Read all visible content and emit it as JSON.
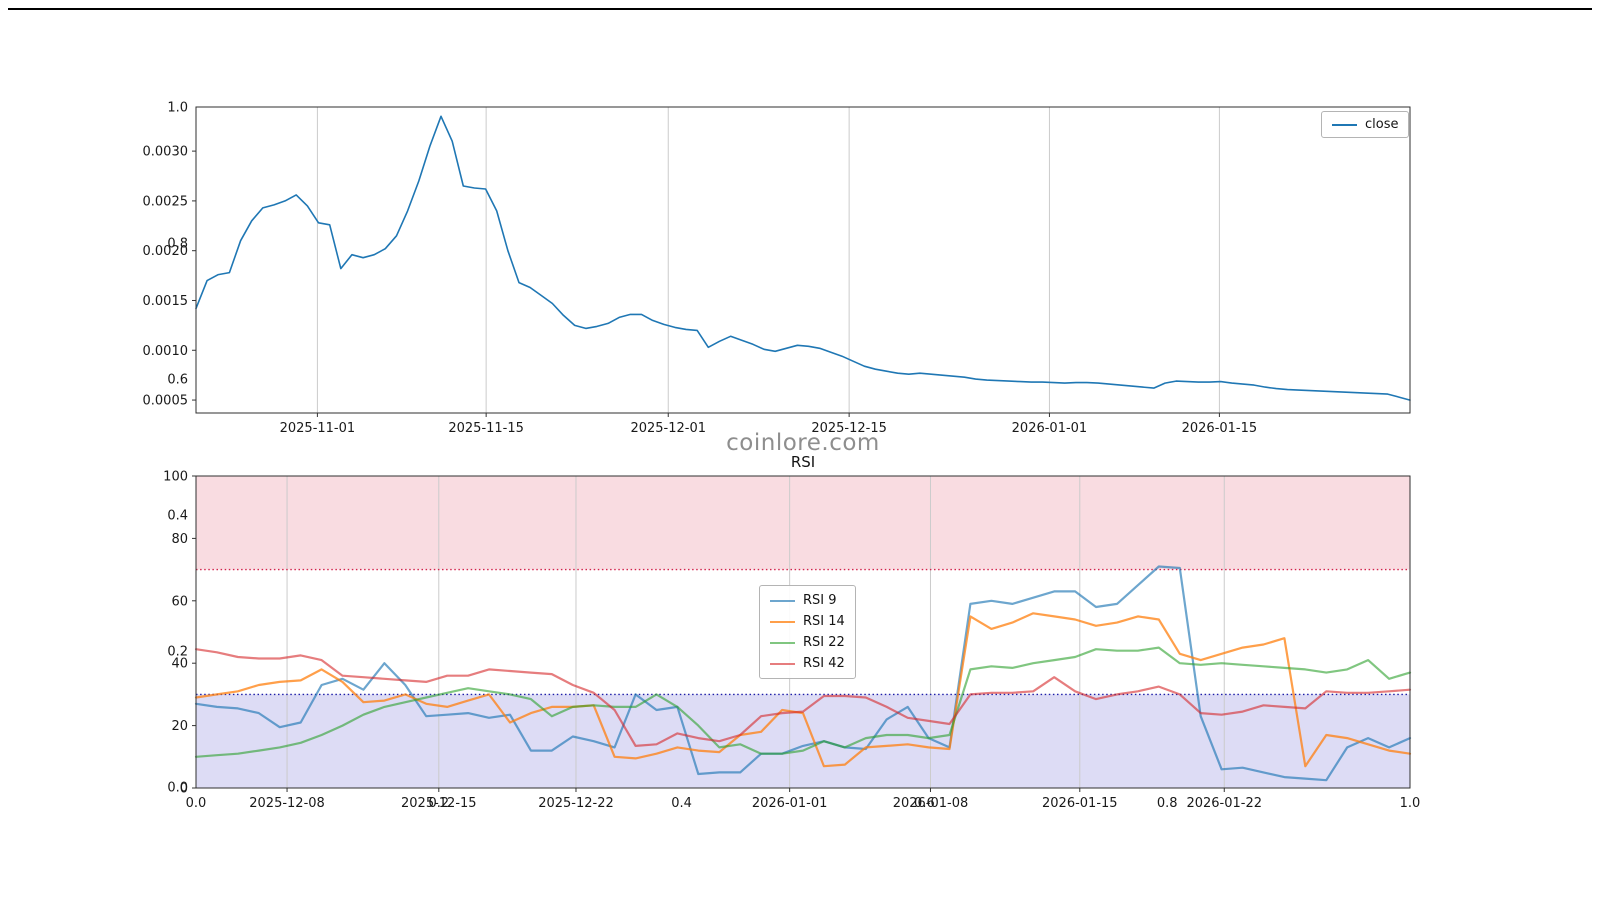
{
  "watermark": "coinlore.com",
  "overlay_axis": {
    "y_labels": [
      "1.0",
      "0.8",
      "0.6",
      "0.4",
      "0.2",
      "0.0"
    ],
    "x_labels": [
      "0.0",
      "0.2",
      "0.4",
      "0.6",
      "0.8",
      "1.0"
    ]
  },
  "chart_data": [
    {
      "type": "line",
      "title": "",
      "grid": "vertical",
      "legend_position": "upper right",
      "y_format": "price",
      "ylim": [
        0.00037,
        0.003443
      ],
      "y_ticks": [
        0.0005,
        0.001,
        0.0015,
        0.002,
        0.0025,
        0.003
      ],
      "x_ticks": [
        {
          "label": "2025-11-01",
          "pos": 0.1
        },
        {
          "label": "2025-11-15",
          "pos": 0.239
        },
        {
          "label": "2025-12-01",
          "pos": 0.389
        },
        {
          "label": "2025-12-15",
          "pos": 0.538
        },
        {
          "label": "2026-01-01",
          "pos": 0.703
        },
        {
          "label": "2026-01-15",
          "pos": 0.843
        }
      ],
      "series": [
        {
          "name": "close",
          "color": "#1f77b4",
          "opacity": 1,
          "width": 1.6,
          "values": [
            0.00142,
            0.0017,
            0.00176,
            0.00178,
            0.0021,
            0.0023,
            0.00243,
            0.00246,
            0.0025,
            0.00256,
            0.00245,
            0.00228,
            0.00226,
            0.00182,
            0.00196,
            0.00193,
            0.00196,
            0.00202,
            0.00215,
            0.0024,
            0.0027,
            0.00305,
            0.00335,
            0.0031,
            0.00265,
            0.00263,
            0.00262,
            0.0024,
            0.002,
            0.00168,
            0.00163,
            0.00155,
            0.00147,
            0.00135,
            0.00125,
            0.00122,
            0.00124,
            0.00127,
            0.00133,
            0.00136,
            0.00136,
            0.0013,
            0.00126,
            0.00123,
            0.00121,
            0.0012,
            0.00103,
            0.00109,
            0.00114,
            0.0011,
            0.00106,
            0.00101,
            0.00099,
            0.00102,
            0.00105,
            0.00104,
            0.00102,
            0.00098,
            0.00094,
            0.00089,
            0.00084,
            0.00081,
            0.00079,
            0.00077,
            0.00076,
            0.00077,
            0.00076,
            0.00075,
            0.00074,
            0.00073,
            0.00071,
            0.0007,
            0.000695,
            0.00069,
            0.000685,
            0.00068,
            0.00068,
            0.000675,
            0.00067,
            0.000675,
            0.000675,
            0.00067,
            0.00066,
            0.00065,
            0.00064,
            0.00063,
            0.00062,
            0.00067,
            0.00069,
            0.000685,
            0.00068,
            0.00068,
            0.000685,
            0.00067,
            0.00066,
            0.00065,
            0.00063,
            0.000615,
            0.000605,
            0.0006,
            0.000595,
            0.00059,
            0.000585,
            0.00058,
            0.000575,
            0.00057,
            0.000565,
            0.00056,
            0.00053,
            0.0005
          ]
        }
      ]
    },
    {
      "type": "line",
      "title": "RSI",
      "grid": "vertical",
      "legend_position": "center",
      "ylim": [
        0,
        100
      ],
      "y_ticks": [
        0,
        20,
        40,
        60,
        80,
        100
      ],
      "x_ticks": [
        {
          "label": "2025-12-08",
          "pos": 0.075
        },
        {
          "label": "2025-12-15",
          "pos": 0.2
        },
        {
          "label": "2025-12-22",
          "pos": 0.313
        },
        {
          "label": "2026-01-01",
          "pos": 0.489
        },
        {
          "label": "2026-01-08",
          "pos": 0.605
        },
        {
          "label": "2026-01-15",
          "pos": 0.728
        },
        {
          "label": "2026-01-22",
          "pos": 0.847
        }
      ],
      "bands": [
        {
          "from": 70,
          "to": 100,
          "color": "#f9dce1",
          "meaning": "overbought"
        },
        {
          "from": 0,
          "to": 30,
          "color": "#dddcf5",
          "meaning": "oversold"
        }
      ],
      "hlines": [
        {
          "value": 70,
          "color": "#d1234c",
          "style": "dotted"
        },
        {
          "value": 30,
          "color": "#1d1da8",
          "style": "dotted"
        }
      ],
      "series": [
        {
          "name": "RSI 9",
          "color": "#1f77b4",
          "opacity": 0.65,
          "width": 2.2,
          "values": [
            27,
            26,
            25.5,
            24,
            19.5,
            21,
            33,
            35,
            31.5,
            40,
            33,
            23,
            23.5,
            24,
            22.5,
            23.5,
            12,
            12,
            16.5,
            15,
            13,
            30,
            25,
            26,
            4.5,
            5,
            5,
            11,
            11,
            13.5,
            15,
            13,
            12.5,
            22,
            26,
            16,
            13,
            59,
            60,
            59,
            61,
            63,
            63,
            58,
            59,
            65,
            71,
            70.5,
            23,
            6,
            6.5,
            5,
            3.5,
            3,
            2.5,
            13,
            16,
            13,
            16
          ]
        },
        {
          "name": "RSI 14",
          "color": "#ff7f0e",
          "opacity": 0.75,
          "width": 2.2,
          "values": [
            29,
            30,
            31,
            33,
            34,
            34.5,
            38,
            34,
            27.5,
            28,
            30,
            27,
            26,
            28,
            30,
            21,
            24,
            26,
            26,
            26.5,
            10,
            9.5,
            11,
            13,
            12,
            11.5,
            17,
            18,
            25,
            24,
            7,
            7.5,
            13,
            13.5,
            14,
            13,
            12.5,
            55,
            51,
            53,
            56,
            55,
            54,
            52,
            53,
            55,
            54,
            43,
            41,
            43,
            45,
            46,
            48,
            7,
            17,
            16,
            14,
            12,
            11
          ]
        },
        {
          "name": "RSI 22",
          "color": "#2ca02c",
          "opacity": 0.6,
          "width": 2.2,
          "values": [
            10,
            10.5,
            11,
            12,
            13,
            14.5,
            17,
            20,
            23.5,
            26,
            27.5,
            29,
            30.5,
            32,
            31,
            30,
            28.5,
            23,
            26,
            26.5,
            26,
            26,
            30,
            26,
            20,
            13,
            14,
            11,
            11,
            12,
            15,
            13,
            16,
            17,
            17,
            16,
            17,
            38,
            39,
            38.5,
            40,
            41,
            42,
            44.5,
            44,
            44,
            45,
            40,
            39.5,
            40,
            39.5,
            39,
            38.5,
            38,
            37,
            38,
            41,
            35,
            37
          ]
        },
        {
          "name": "RSI 42",
          "color": "#d62728",
          "opacity": 0.6,
          "width": 2.2,
          "values": [
            44.5,
            43.5,
            42,
            41.5,
            41.5,
            42.5,
            41,
            36,
            35.5,
            35,
            34.5,
            34,
            36,
            36,
            38,
            37.5,
            37,
            36.5,
            33,
            30.5,
            25,
            13.5,
            14,
            17.5,
            16,
            15,
            17,
            23,
            24,
            24.5,
            29.5,
            29.5,
            29,
            26,
            22.5,
            21.5,
            20.5,
            30,
            30.5,
            30.5,
            31,
            35.5,
            31,
            28.5,
            30,
            31,
            32.5,
            30,
            24,
            23.5,
            24.5,
            26.5,
            26,
            25.5,
            31,
            30.5,
            30.5,
            31,
            31.5
          ]
        }
      ]
    }
  ]
}
